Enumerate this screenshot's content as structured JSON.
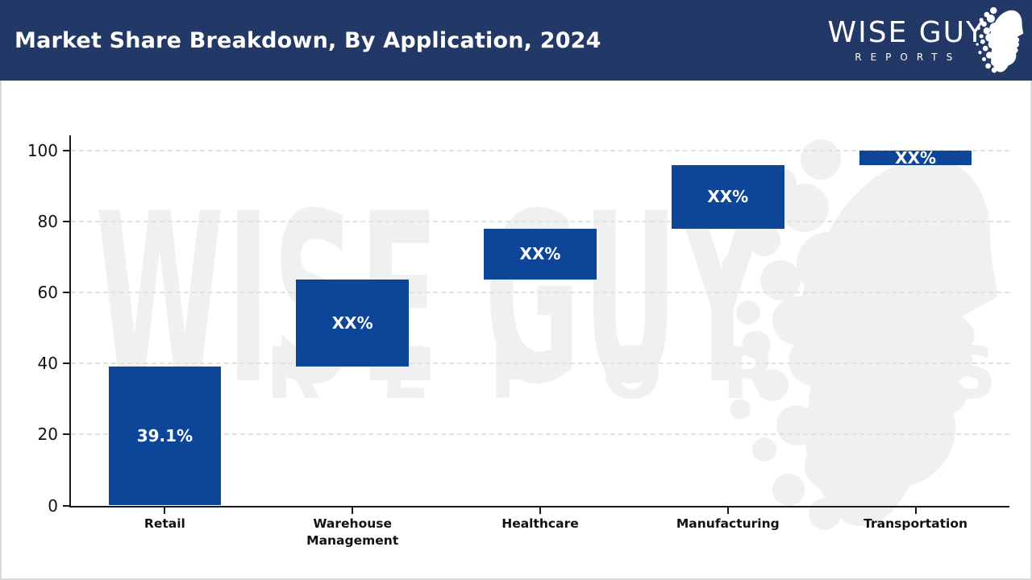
{
  "header": {
    "title": "Market Share Breakdown, By Application, 2024",
    "logo": {
      "name": "WISE GUY",
      "subtitle": "REPORTS",
      "icon": "dotted-head-icon"
    }
  },
  "watermark": {
    "line1": "WISE GUY",
    "line2": "R E P O R T S",
    "icon": "dotted-head-icon"
  },
  "chart_data": {
    "type": "bar",
    "variant": "waterfall",
    "title": "Market Share Breakdown, By Application, 2024",
    "categories": [
      "Retail",
      "Warehouse Management",
      "Healthcare",
      "Manufacturing",
      "Transportation"
    ],
    "segments": [
      {
        "category": "Retail",
        "start": 0,
        "end": 39.1,
        "label": "39.1%"
      },
      {
        "category": "Warehouse Management",
        "start": 39.1,
        "end": 63.6,
        "label": "XX%"
      },
      {
        "category": "Healthcare",
        "start": 63.6,
        "end": 78.0,
        "label": "XX%"
      },
      {
        "category": "Manufacturing",
        "start": 78.0,
        "end": 95.8,
        "label": "XX%"
      },
      {
        "category": "Transportation",
        "start": 95.8,
        "end": 100,
        "label": "XX%"
      }
    ],
    "ylabel": "",
    "xlabel": "",
    "ylim": [
      0,
      100
    ],
    "yticks": [
      0,
      20,
      40,
      60,
      80,
      100
    ],
    "grid": "horizontal-dashed",
    "legend": "none",
    "bar_color": "#0d4598",
    "bar_label_color": "#ffffff",
    "header_color": "#223866"
  }
}
